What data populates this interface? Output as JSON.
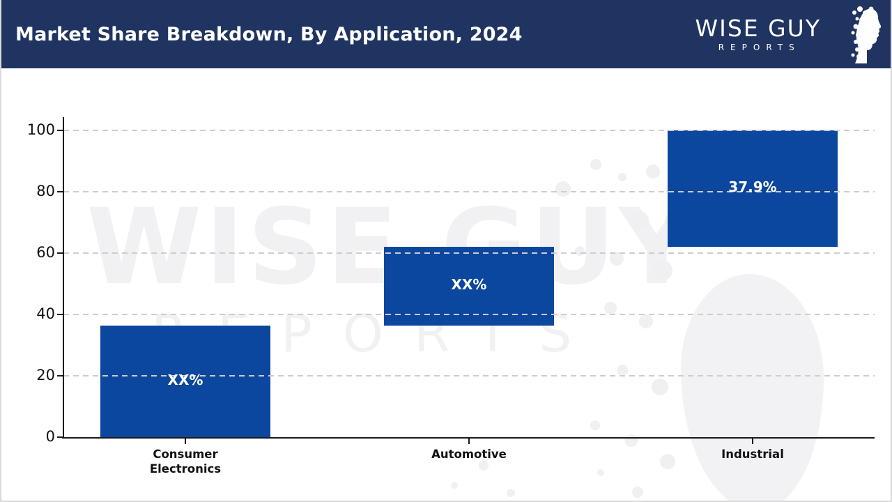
{
  "header": {
    "title": "Market Share Breakdown, By Application, 2024",
    "bg_color": "#1f3461",
    "logo": {
      "wordmark": "WISE GUY",
      "subtext": "REPORTS"
    }
  },
  "watermark": {
    "line1": "WISE GUY",
    "line2": "REPORTS"
  },
  "chart_data": {
    "type": "bar",
    "subtype": "waterfall-floating-bars",
    "title": "Market Share Breakdown, By Application, 2024",
    "categories": [
      "Consumer Electronics",
      "Automotive",
      "Industrial"
    ],
    "segments": [
      {
        "category_lines": [
          "Consumer",
          "Electronics"
        ],
        "start": 0,
        "end": 36.4,
        "label": "XX%"
      },
      {
        "category_lines": [
          "Automotive"
        ],
        "start": 36.4,
        "end": 62.1,
        "label": "XX%"
      },
      {
        "category_lines": [
          "Industrial"
        ],
        "start": 62.1,
        "end": 100,
        "label": "37.9%"
      }
    ],
    "y_ticks": [
      0,
      20,
      40,
      60,
      80,
      100
    ],
    "ylim": [
      0,
      100
    ],
    "xlabel": "",
    "ylabel": "",
    "grid": "horizontal-dashed",
    "legend": "none",
    "bar_color": "#0b479e",
    "bar_label_color": "#ffffff",
    "axis_color": "#1a1a1a",
    "gridline_color": "#cdcdcd"
  }
}
